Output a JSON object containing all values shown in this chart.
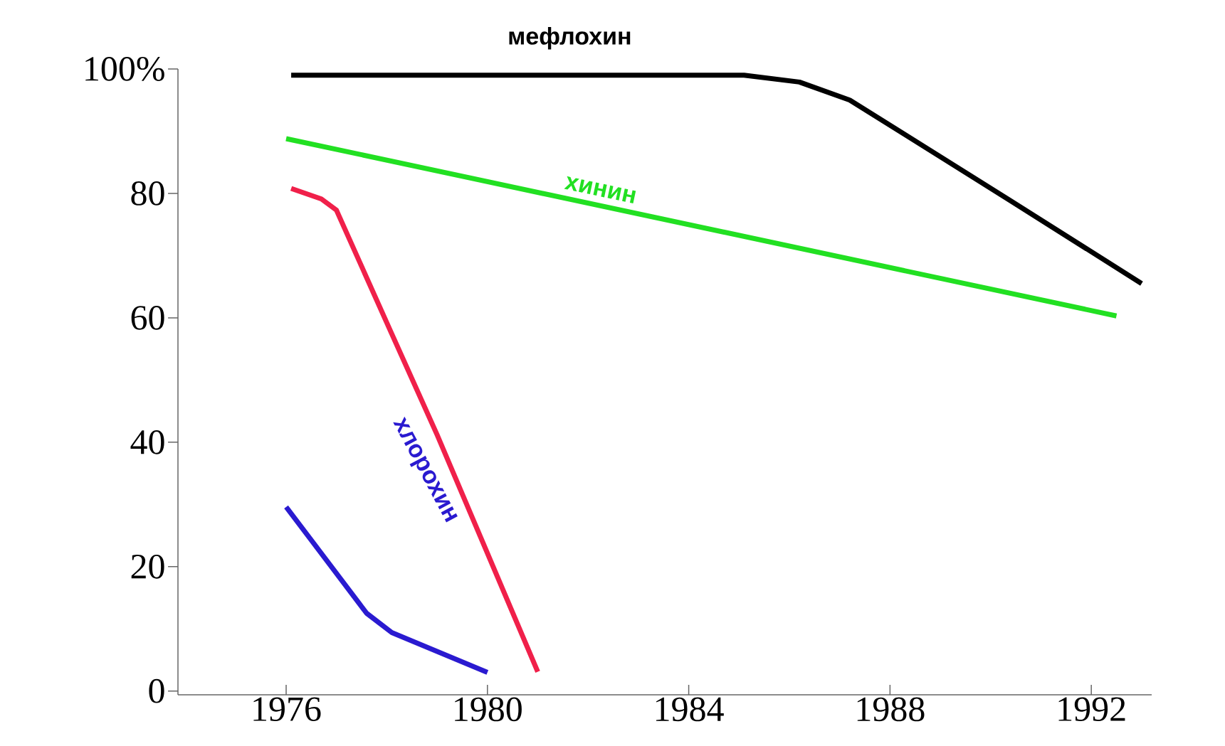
{
  "chart_data": {
    "type": "line",
    "xlim": [
      1973.85,
      1993.2
    ],
    "ylim": [
      -0.6,
      100
    ],
    "xticks": [
      1976,
      1980,
      1984,
      1988,
      1992
    ],
    "yticks": [
      0,
      20,
      40,
      60,
      80,
      {
        "value": 100,
        "label": "100%"
      }
    ],
    "grid": false,
    "marker": "none",
    "line_style": "solid",
    "series": [
      {
        "name": "мефлохин",
        "color": "#000000",
        "x": [
          1976.1,
          1985.1,
          1986.2,
          1987.2,
          1990.4,
          1993.0
        ],
        "values": [
          99,
          99,
          97.9,
          95,
          78.8,
          65.5
        ]
      },
      {
        "name": "хинин",
        "color": "#22e022",
        "x": [
          1976.0,
          1992.5
        ],
        "values": [
          88.8,
          60.3
        ]
      },
      {
        "color": "#f0204a",
        "x": [
          1976.1,
          1976.7,
          1977.0,
          1978.1,
          1979.0,
          1981.0
        ],
        "values": [
          80.8,
          79.1,
          77.3,
          57.4,
          41.2,
          3.1
        ]
      },
      {
        "name": "хлорохин",
        "color": "#2a1ad0",
        "x": [
          1976.0,
          1977.6,
          1978.1,
          1980.0
        ],
        "values": [
          29.6,
          12.5,
          9.4,
          3.0
        ]
      }
    ]
  }
}
